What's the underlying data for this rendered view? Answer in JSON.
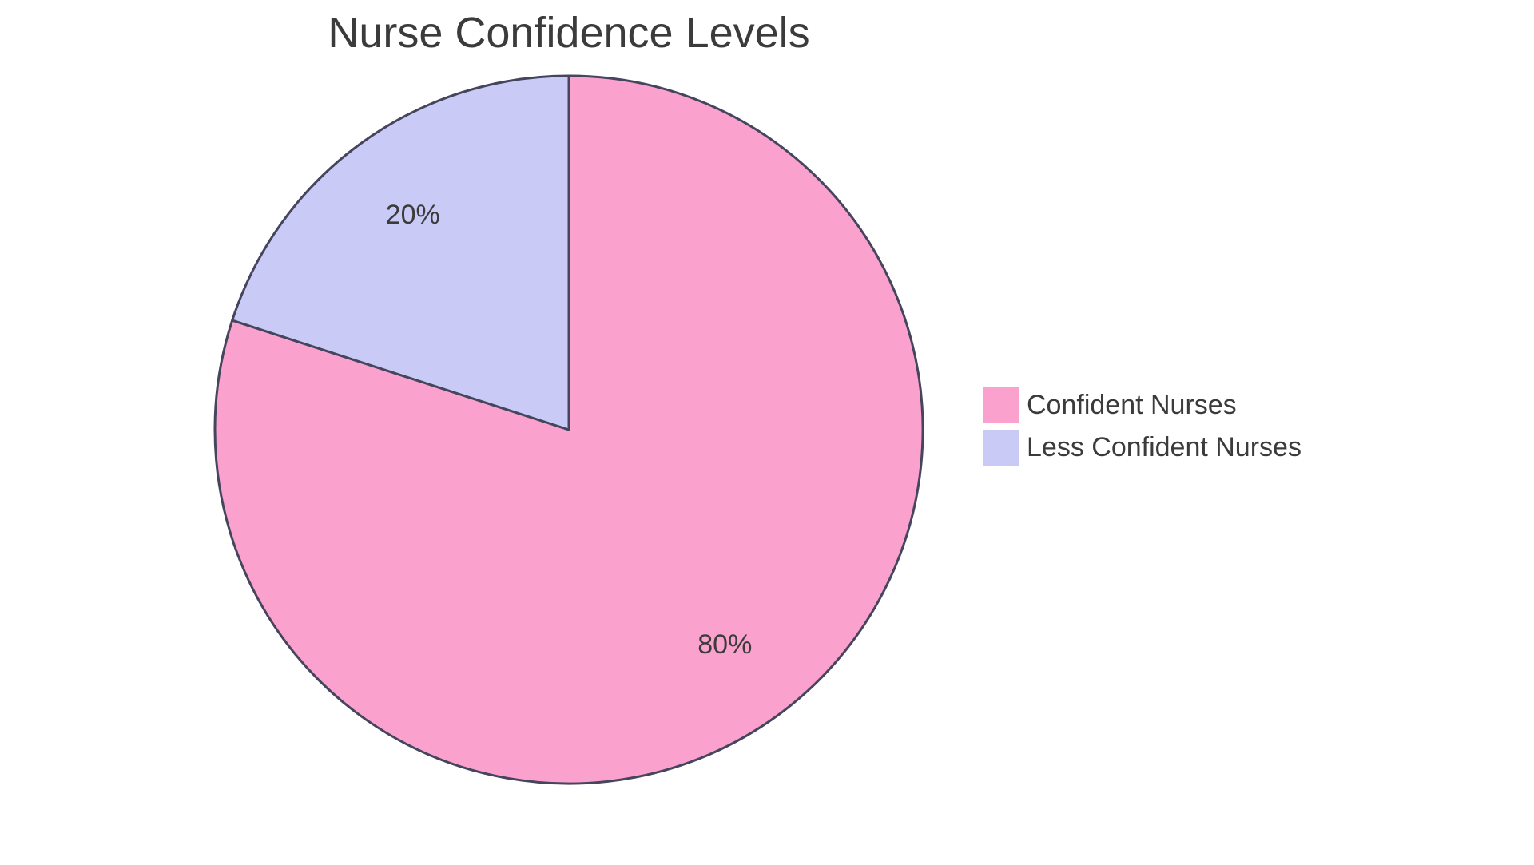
{
  "chart_data": {
    "type": "pie",
    "title": "Nurse Confidence Levels",
    "slices": [
      {
        "label": "Confident Nurses",
        "value": 80,
        "percent_label": "80%",
        "color": "#FBA1CD"
      },
      {
        "label": "Less Confident Nurses",
        "value": 20,
        "percent_label": "20%",
        "color": "#C9CAF6"
      }
    ],
    "start_angle_deg": 0,
    "direction": "clockwise",
    "stroke_color": "#45455E",
    "stroke_width": 3,
    "text_color": "#3b3b3b",
    "background_color": "#ffffff",
    "legend_position": "right",
    "grid": false
  }
}
